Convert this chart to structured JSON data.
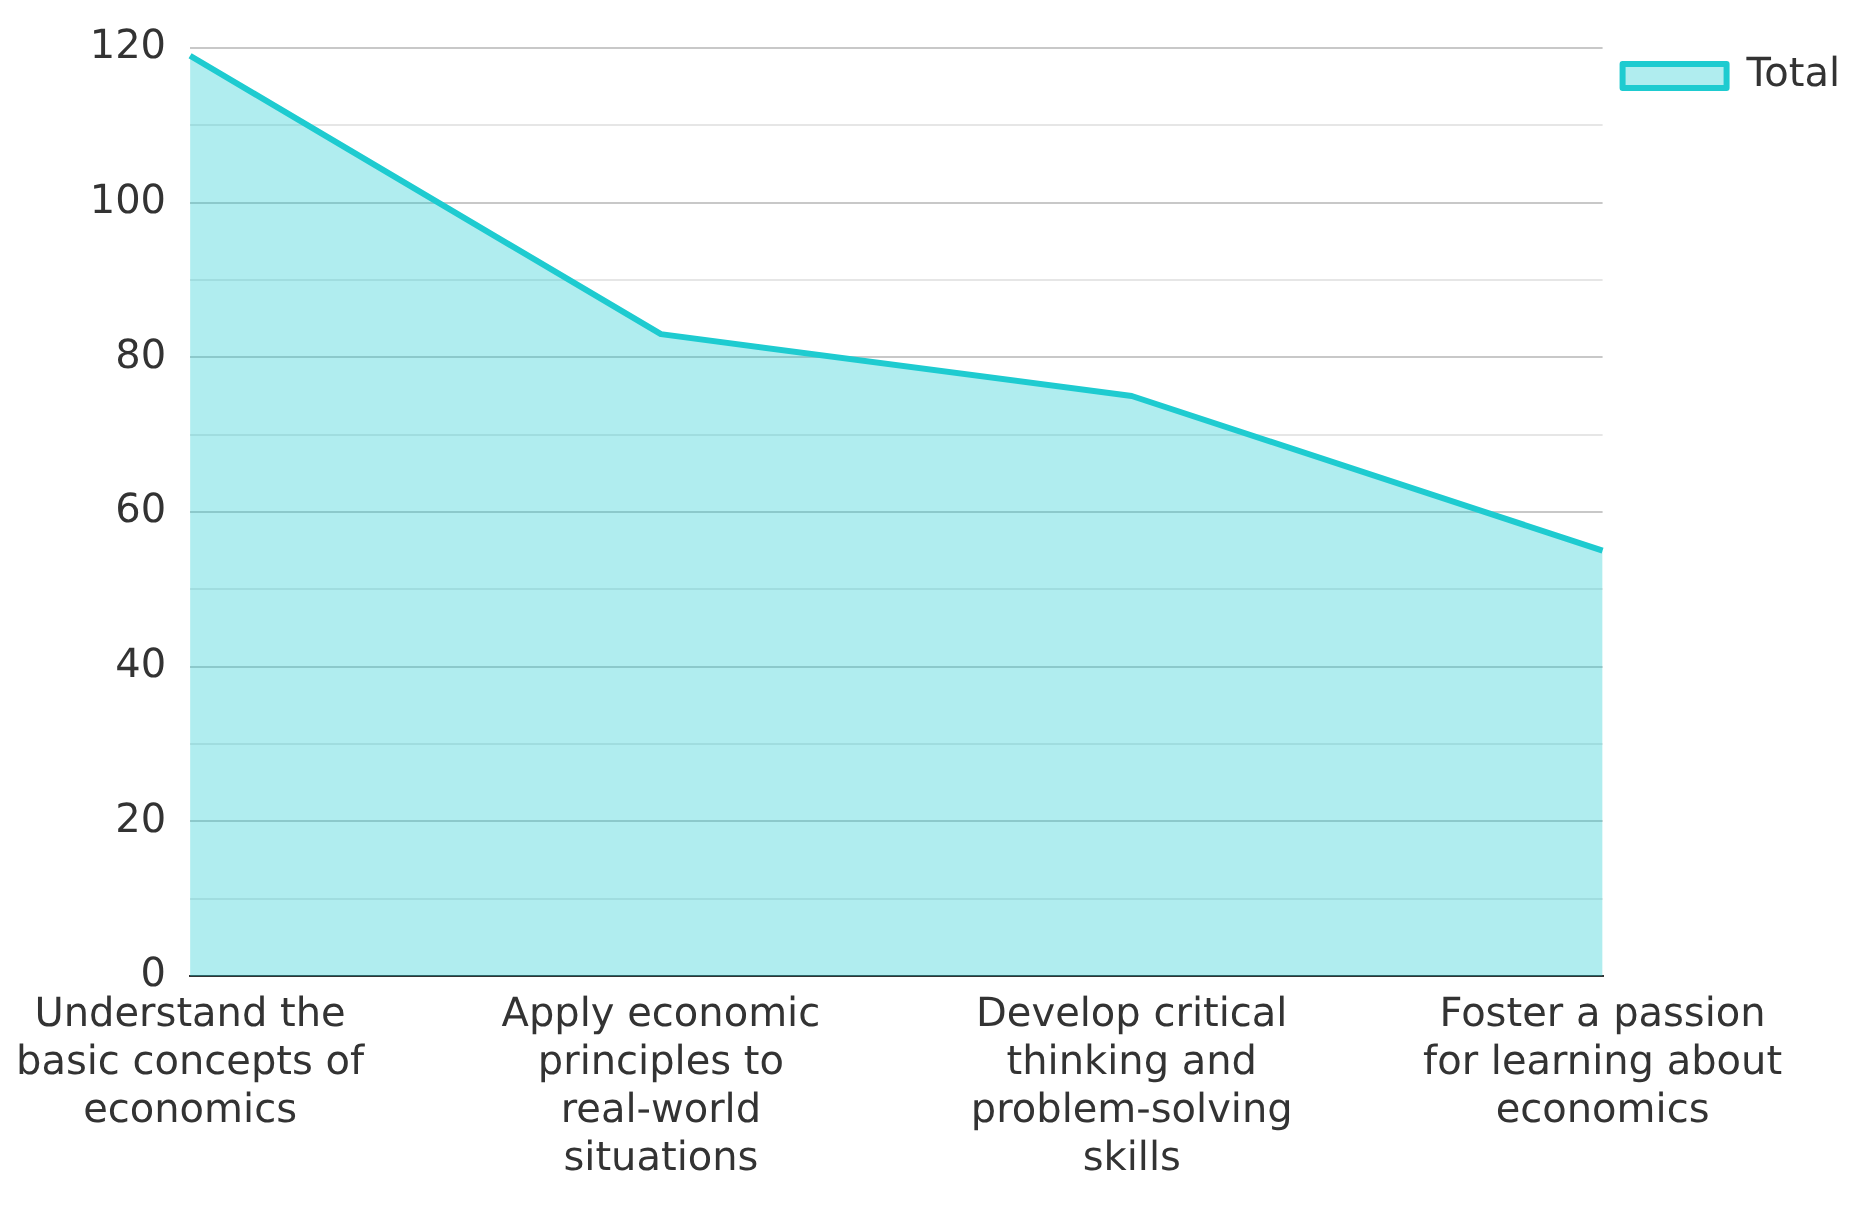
{
  "chart_data": {
    "type": "area",
    "categories": [
      "Understand the basic concepts of economics",
      "Apply economic principles to real-world situations",
      "Develop critical thinking and problem-solving skills",
      "Foster a passion for learning about economics"
    ],
    "series": [
      {
        "name": "Total",
        "color": "#1ecbd0",
        "values": [
          119,
          83,
          75,
          55
        ]
      }
    ],
    "ylim": [
      0,
      120
    ],
    "yticks": [
      0,
      {
        "value": 10,
        "label": null
      },
      20,
      {
        "value": 30,
        "label": null
      },
      40,
      {
        "value": 50,
        "label": null
      },
      60,
      {
        "value": 70,
        "label": null
      },
      80,
      {
        "value": 90,
        "label": null
      },
      100,
      {
        "value": 110,
        "label": null
      },
      120
    ],
    "grid": "y",
    "legend": "top right",
    "marker": "none",
    "line_style": "solid"
  }
}
